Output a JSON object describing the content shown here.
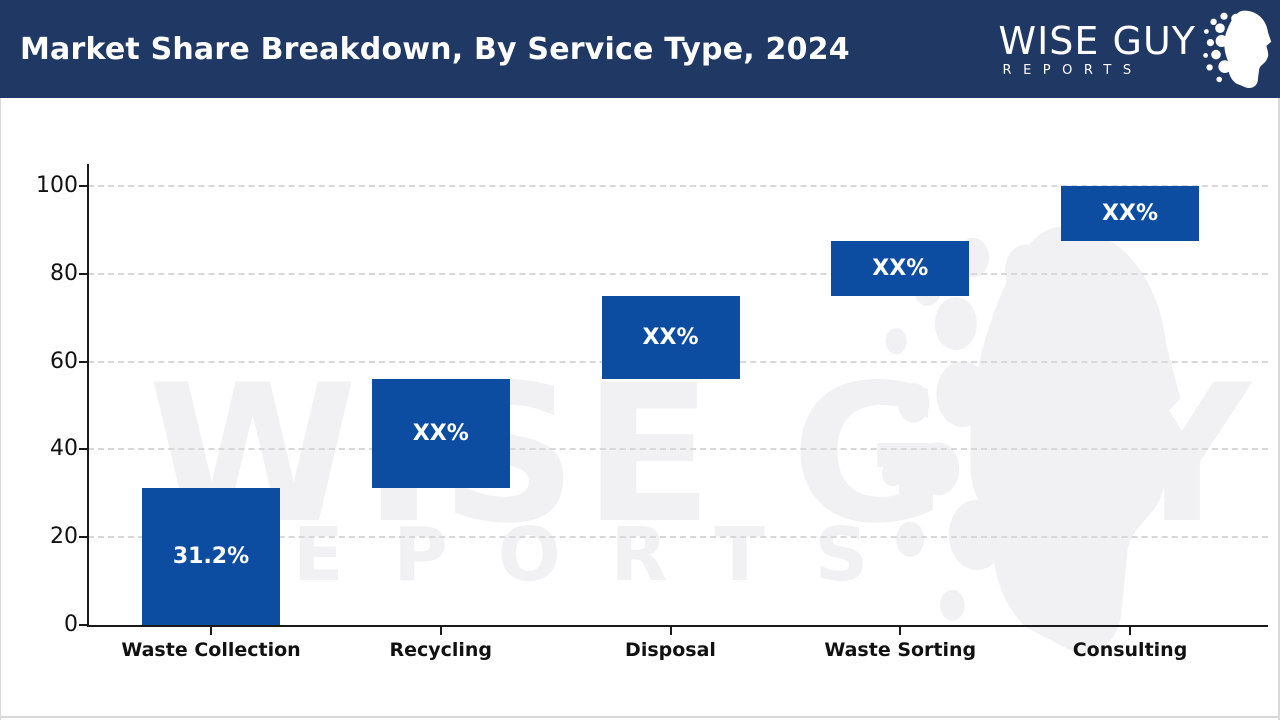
{
  "header": {
    "title": "Market Share Breakdown, By Service Type, 2024",
    "bg_color": "#203864",
    "logo": {
      "line1": "WISE GUY",
      "line2": "REPORTS"
    }
  },
  "watermark": {
    "line1": "WISE GUY",
    "line2": "REPORTS"
  },
  "chart_data": {
    "type": "bar",
    "subtype": "waterfall",
    "title": "Market Share Breakdown, By Service Type, 2024",
    "categories": [
      "Waste Collection",
      "Recycling",
      "Disposal",
      "Waste Sorting",
      "Consulting"
    ],
    "segments": [
      {
        "category": "Waste Collection",
        "start": 0,
        "end": 31.2,
        "label": "31.2%"
      },
      {
        "category": "Recycling",
        "start": 31.2,
        "end": 56.0,
        "label": "XX%"
      },
      {
        "category": "Disposal",
        "start": 56.0,
        "end": 75.0,
        "label": "XX%"
      },
      {
        "category": "Waste Sorting",
        "start": 75.0,
        "end": 87.5,
        "label": "XX%"
      },
      {
        "category": "Consulting",
        "start": 87.5,
        "end": 100.0,
        "label": "XX%"
      }
    ],
    "yticks": [
      0,
      20,
      40,
      60,
      80,
      100
    ],
    "ylim": [
      0,
      105
    ],
    "xlabel": "",
    "ylabel": "",
    "bar_color": "#0c4da2",
    "grid": "horizontal-dashed",
    "legend": "none"
  }
}
